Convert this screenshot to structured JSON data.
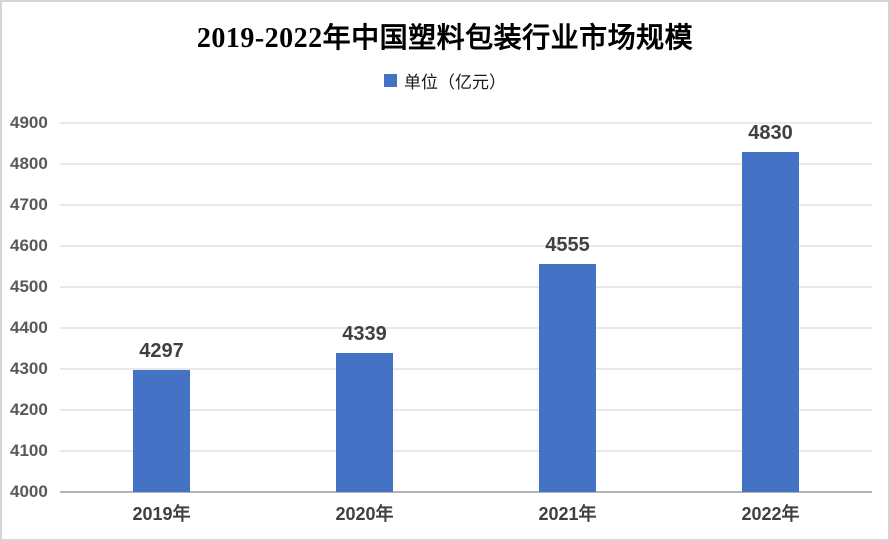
{
  "chart_data": {
    "type": "bar",
    "title": "2019-2022年中国塑料包装行业市场规模",
    "legend": "单位（亿元）",
    "legend_position": "top",
    "categories": [
      "2019年",
      "2020年",
      "2021年",
      "2022年"
    ],
    "values": [
      4297,
      4339,
      4555,
      4830
    ],
    "xlabel": "",
    "ylabel": "",
    "ylim": [
      4000,
      4900
    ],
    "ytick_step": 100,
    "grid": true,
    "bar_color": "#4472C4"
  },
  "colors": {
    "bar": "#4472C4",
    "gridline": "#e9e9e9",
    "axis_line": "#b3b3b3",
    "tick_label": "#595959",
    "value_label": "#404040",
    "title": "#000000",
    "frame_border": "#d6d6d6",
    "background": "#ffffff"
  }
}
